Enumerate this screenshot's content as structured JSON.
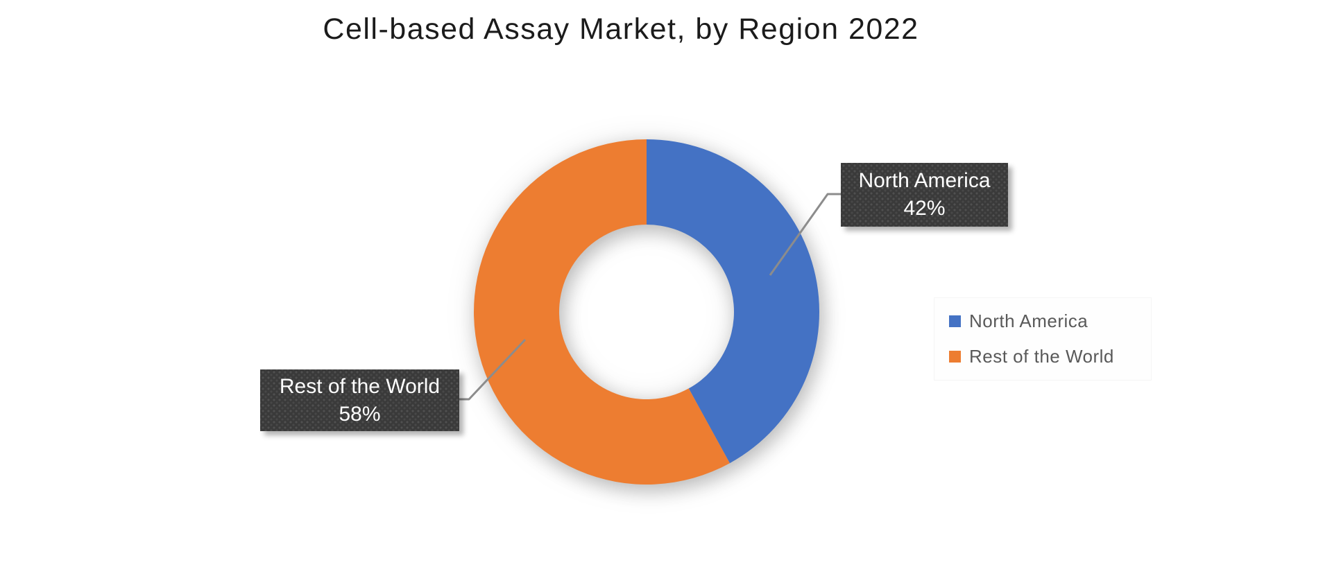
{
  "title": "Cell-based Assay Market, by Region 2022",
  "chart_data": {
    "type": "pie",
    "subtype": "donut",
    "title": "Cell-based Assay Market, by Region 2022",
    "categories": [
      "North America",
      "Rest of the World"
    ],
    "values": [
      42,
      58
    ],
    "unit": "%",
    "colors": [
      "#4472C4",
      "#ED7D31"
    ],
    "start_angle_deg": 0,
    "direction": "clockwise",
    "inner_radius_ratio": 0.506,
    "legend_position": "right",
    "data_labels": [
      {
        "name": "North America",
        "value": "42%"
      },
      {
        "name": "Rest of the World",
        "value": "58%"
      }
    ]
  },
  "callouts": {
    "north_america": {
      "name": "North America",
      "value": "42%"
    },
    "rest_of_world": {
      "name": "Rest of the World",
      "value": "58%"
    }
  },
  "legend": {
    "items": [
      {
        "label": "North America",
        "color": "#4472C4"
      },
      {
        "label": "Rest of the World",
        "color": "#ED7D31"
      }
    ]
  },
  "colors": {
    "north_america": "#4472C4",
    "rest_of_world": "#ED7D31",
    "leader_line": "#8c8c8c",
    "callout_background": "#3a3a3a",
    "callout_text": "#ffffff",
    "legend_text": "#595959",
    "title_text": "#1b1b1b"
  }
}
